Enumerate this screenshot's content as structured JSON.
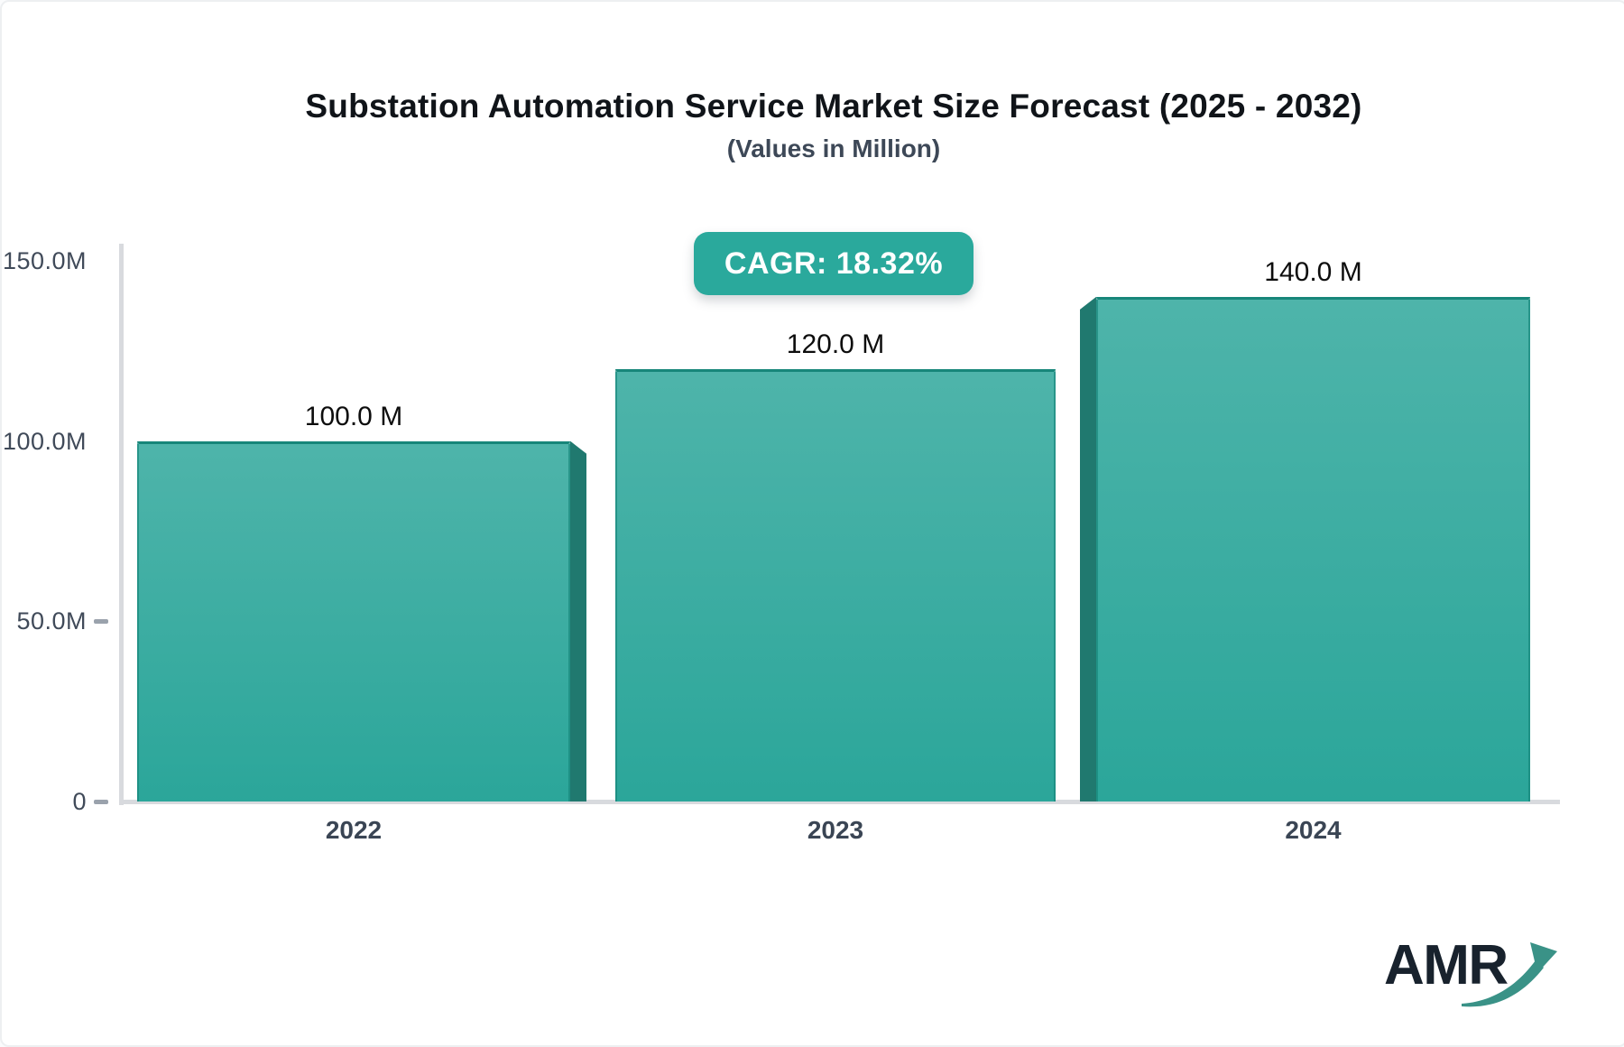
{
  "header": {
    "title": "Substation Automation Service Market Size Forecast (2025 - 2032)",
    "subtitle": "(Values in Million)",
    "cagr_label": "CAGR: 18.32%"
  },
  "chart_data": {
    "type": "bar",
    "title": "Substation Automation Service Market Size Forecast (2025 - 2032)",
    "subtitle": "(Values in Million)",
    "cagr_annotation": "CAGR: 18.32%",
    "unit": "Million",
    "categories": [
      "2022",
      "2023",
      "2024"
    ],
    "values": [
      100,
      120,
      140
    ],
    "value_labels": [
      "100.0 M",
      "120.0 M",
      "140.0 M"
    ],
    "ylim": [
      0,
      150
    ],
    "yticks": [
      {
        "label": "150.0M",
        "value": 150,
        "dash": false
      },
      {
        "label": "100.0M",
        "value": 100,
        "dash": false
      },
      {
        "label": "50.0M",
        "value": 50,
        "dash": true
      },
      {
        "label": "0",
        "value": 0,
        "dash": true
      }
    ],
    "grid": false,
    "legend": "none"
  },
  "branding": {
    "logo_text": "AMR"
  },
  "colors": {
    "badge_bg": "#2aa99c",
    "bar_gradient_top": "#4eb4aa",
    "bar_gradient_bottom": "#2ba69a",
    "bar_side_face": "#20796f",
    "bar_border": "#17867a",
    "axis_line": "#d8dade",
    "tick_dash": "#9aa2ac",
    "value_label": "#0d0d0d",
    "tick_label": "#404a59",
    "title_text": "#101419",
    "subtitle_text": "#3d4857",
    "logo_text": "#18222d",
    "logo_arrow": "#3a9287"
  }
}
